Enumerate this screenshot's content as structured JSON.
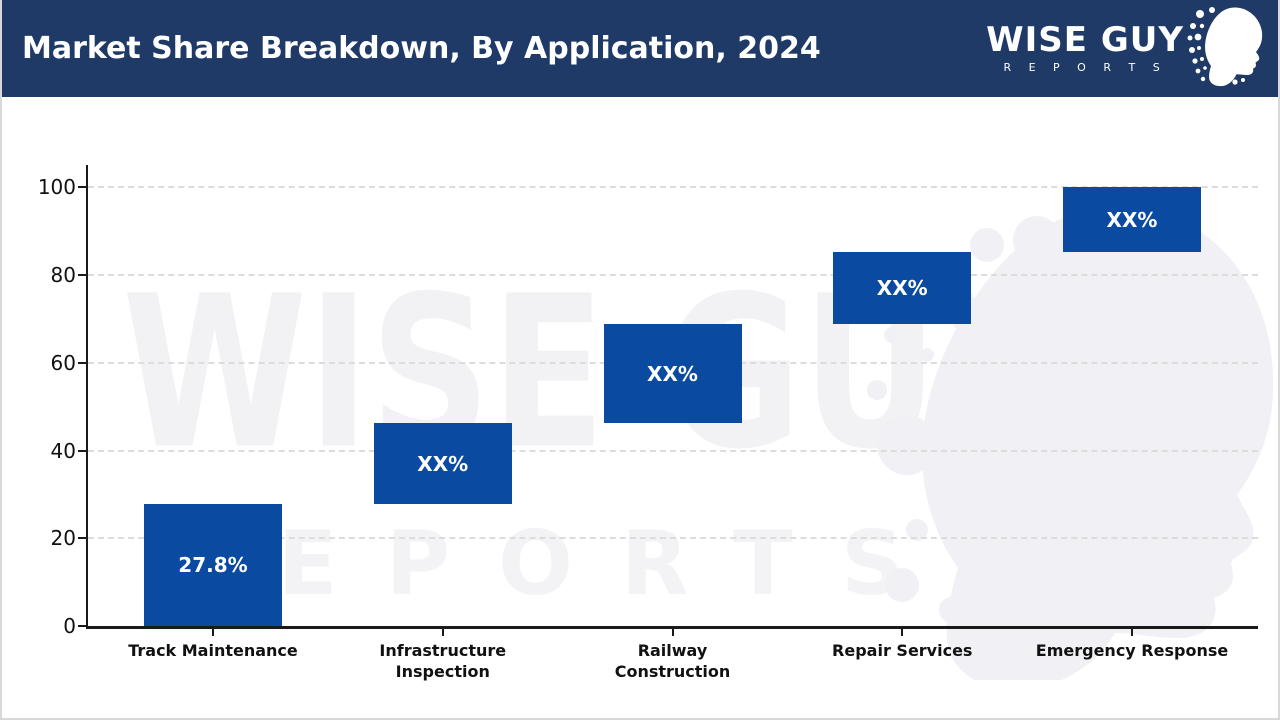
{
  "header": {
    "title": "Market Share Breakdown, By Application, 2024",
    "bg_color": "#1f3a66",
    "logo": {
      "brand": "WISE GUY",
      "sub": "R E P O R T S"
    }
  },
  "watermark": {
    "line1": "WISE GUY",
    "line2": "REPORTS"
  },
  "chart_data": {
    "type": "bar",
    "variant": "waterfall",
    "title": "Market Share Breakdown, By Application, 2024",
    "categories": [
      "Track Maintenance",
      "Infrastructure Inspection",
      "Railway Construction",
      "Repair Services",
      "Emergency Response"
    ],
    "category_lines": [
      [
        "Track Maintenance"
      ],
      [
        "Infrastructure",
        "Inspection"
      ],
      [
        "Railway",
        "Construction"
      ],
      [
        "Repair Services"
      ],
      [
        "Emergency Response"
      ]
    ],
    "series": [
      {
        "name": "Market Share",
        "segments": [
          {
            "category": "Track Maintenance",
            "start": 0,
            "end": 27.8,
            "label": "27.8%"
          },
          {
            "category": "Infrastructure Inspection",
            "start": 27.8,
            "end": 46.2,
            "label": "XX%"
          },
          {
            "category": "Railway Construction",
            "start": 46.2,
            "end": 68.7,
            "label": "XX%"
          },
          {
            "category": "Repair Services",
            "start": 68.7,
            "end": 85.1,
            "label": "XX%"
          },
          {
            "category": "Emergency Response",
            "start": 85.1,
            "end": 100,
            "label": "XX%"
          }
        ]
      }
    ],
    "yticks": [
      0,
      20,
      40,
      60,
      80,
      100
    ],
    "ylim": [
      0,
      105
    ],
    "xlabel": "",
    "ylabel": "",
    "grid": "horizontal-dashed",
    "legend": "none",
    "bar_color": "#0b4aa1",
    "bar_label_color": "#ffffff",
    "axis_color": "#1a1a1a",
    "grid_color": "#dcdcdc"
  }
}
